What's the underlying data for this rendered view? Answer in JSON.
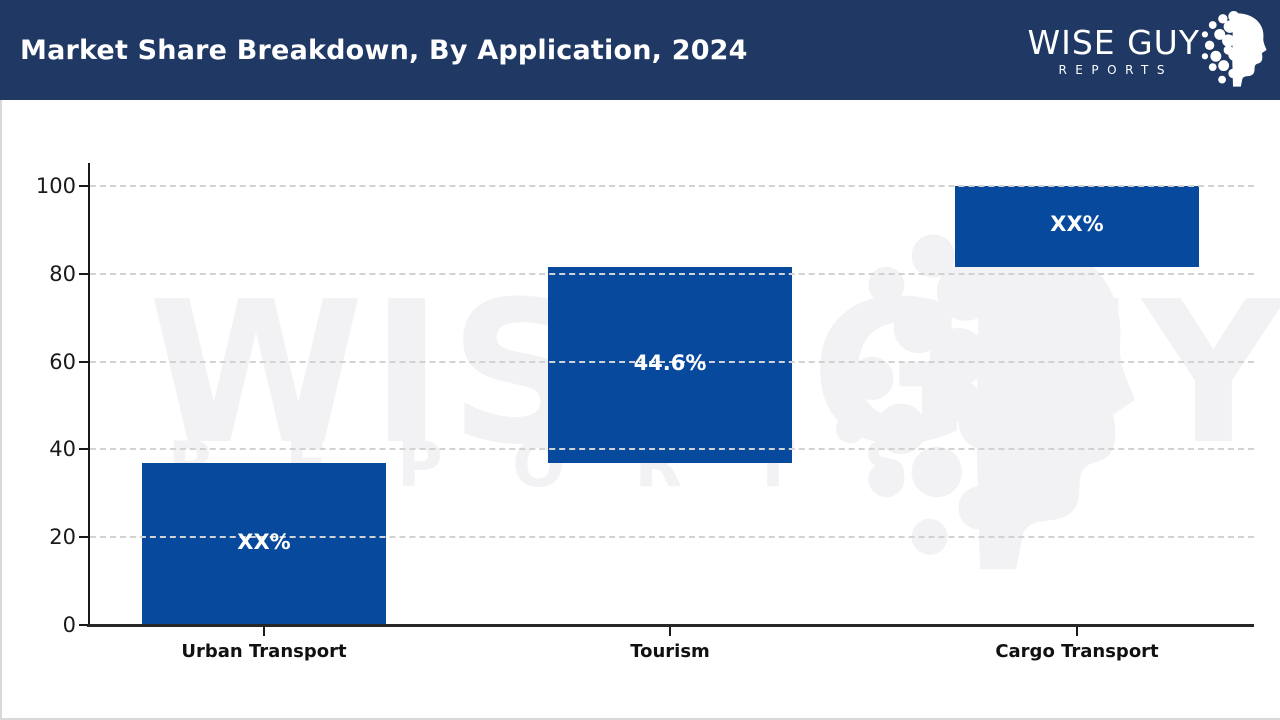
{
  "header": {
    "title": "Market Share Breakdown, By Application, 2024",
    "logo": {
      "line1": "WISE GUY",
      "line2": "REPORTS",
      "head_icon": "dotted-profile-head-icon"
    }
  },
  "watermark": {
    "line1": "WISE GUY",
    "line2": "R E P O R T S",
    "head_icon": "dotted-profile-head-icon"
  },
  "colors": {
    "header_bg": "#1f3864",
    "bar": "#07499c",
    "grid": "#d2d2d2",
    "axis": "#1a1a1a",
    "value_label": "#ffffff",
    "watermark": "#f2f2f4"
  },
  "chart_data": {
    "type": "bar",
    "subtype": "floating-segment-waterfall",
    "title": "Market Share Breakdown, By Application, 2024",
    "categories": [
      "Urban Transport",
      "Tourism",
      "Cargo Transport"
    ],
    "segments": [
      {
        "category": "Urban Transport",
        "start": 0,
        "end": 37,
        "value": 37,
        "label": "XX%"
      },
      {
        "category": "Tourism",
        "start": 37,
        "end": 81.6,
        "value": 44.6,
        "label": "44.6%"
      },
      {
        "category": "Cargo Transport",
        "start": 81.6,
        "end": 100,
        "value": 18.4,
        "label": "XX%"
      }
    ],
    "yticks": [
      0,
      20,
      40,
      60,
      80,
      100
    ],
    "ylim": [
      0,
      105
    ],
    "xlabel": "",
    "ylabel": "",
    "grid": "horizontal-dashed",
    "legend": "none"
  }
}
